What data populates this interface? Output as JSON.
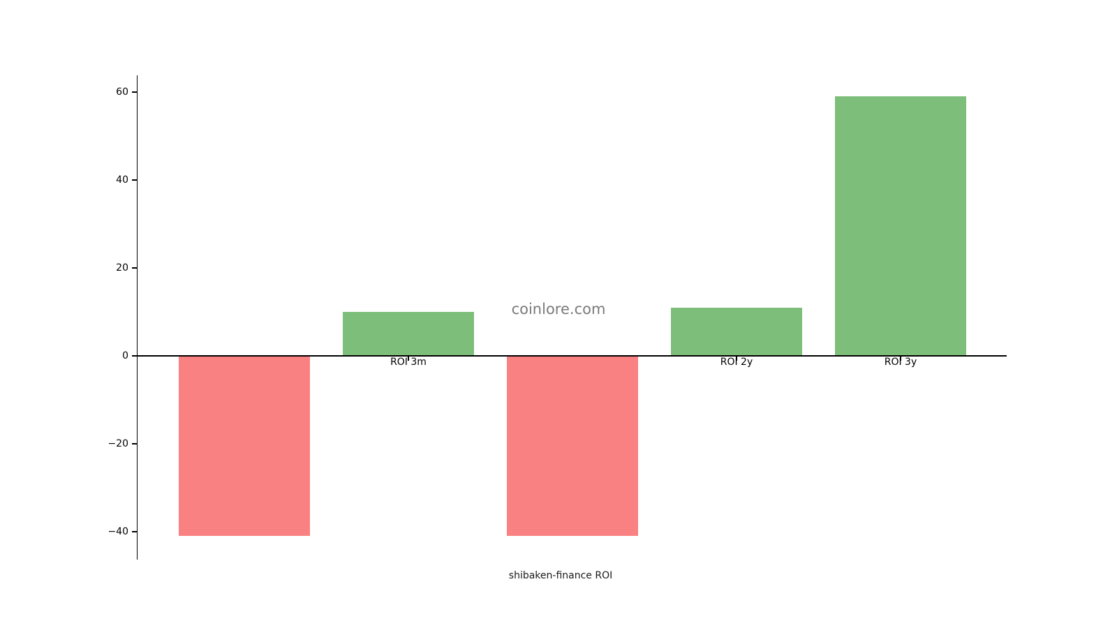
{
  "chart_data": {
    "type": "bar",
    "title": "shibaken-finance ROI",
    "watermark": "coinlore.com",
    "categories": [
      "",
      "ROI 3m",
      "",
      "ROI 2y",
      "ROI 3y"
    ],
    "values": [
      -41,
      10,
      -41,
      11,
      59
    ],
    "series": [
      {
        "name": "shibaken-finance ROI",
        "values": [
          -41,
          10,
          -41,
          11,
          59
        ]
      }
    ],
    "colors": {
      "positive": "#7dbe7b",
      "negative": "#fa8181",
      "axis": "#000000",
      "watermark": "#7a7a7a",
      "background": "#ffffff"
    },
    "y_axis": {
      "tick_values": [
        60,
        40,
        20,
        0,
        -20,
        -40
      ],
      "tick_labels": [
        "60",
        "40",
        "20",
        "0",
        "−20",
        "−40"
      ],
      "ylim": [
        -46,
        63.8
      ]
    },
    "x_axis": {
      "visible_tick_labels": [
        "ROI 3m",
        "ROI 2y",
        "ROI 3y"
      ],
      "note_occluded_labels": "labels of 1st and 3rd bars are hidden behind the negative bars"
    },
    "grid": false,
    "legend": null
  }
}
